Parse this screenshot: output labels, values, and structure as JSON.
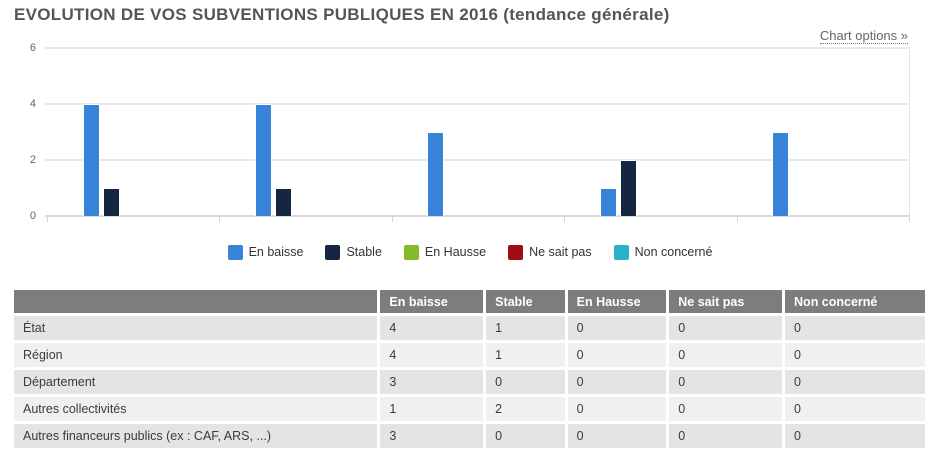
{
  "title": "EVOLUTION DE VOS SUBVENTIONS PUBLIQUES EN 2016 (tendance générale)",
  "chart_options_link": "Chart options »",
  "colors": {
    "en_baisse": "#3884d8",
    "stable": "#152740",
    "en_hausse": "#84bb2d",
    "ne_sait_pas": "#a00c13",
    "non_concerne": "#29b2c8",
    "header_gray": "#7d7d7d",
    "row_dark": "#e4e4e4",
    "row_light": "#f0f0f0",
    "grid": "#e8e8e8"
  },
  "chart_data": {
    "type": "bar",
    "title": "EVOLUTION DE VOS SUBVENTIONS PUBLIQUES EN 2016 (tendance générale)",
    "categories": [
      "État",
      "Région",
      "Département",
      "Autres collectivités",
      "Autres financeurs publics (ex : CAF, ARS, ...)"
    ],
    "series": [
      {
        "name": "En baisse",
        "color": "#3884d8",
        "values": [
          4,
          4,
          3,
          1,
          3
        ]
      },
      {
        "name": "Stable",
        "color": "#152740",
        "values": [
          1,
          1,
          0,
          2,
          0
        ]
      },
      {
        "name": "En Hausse",
        "color": "#84bb2d",
        "values": [
          0,
          0,
          0,
          0,
          0
        ]
      },
      {
        "name": "Ne sait pas",
        "color": "#a00c13",
        "values": [
          0,
          0,
          0,
          0,
          0
        ]
      },
      {
        "name": "Non concerné",
        "color": "#29b2c8",
        "values": [
          0,
          0,
          0,
          0,
          0
        ]
      }
    ],
    "xlabel": "",
    "ylabel": "",
    "ylim": [
      0,
      6
    ],
    "yticks": [
      0,
      2,
      4,
      6
    ],
    "grid": true,
    "x_tick_labels_hidden": true,
    "legend_position": "bottom"
  },
  "table": {
    "columns": [
      "",
      "En baisse",
      "Stable",
      "En Hausse",
      "Ne sait pas",
      "Non concerné"
    ],
    "rows": [
      {
        "label": "État",
        "values": [
          4,
          1,
          0,
          0,
          0
        ]
      },
      {
        "label": "Région",
        "values": [
          4,
          1,
          0,
          0,
          0
        ]
      },
      {
        "label": "Département",
        "values": [
          3,
          0,
          0,
          0,
          0
        ]
      },
      {
        "label": "Autres collectivités",
        "values": [
          1,
          2,
          0,
          0,
          0
        ]
      },
      {
        "label": "Autres financeurs publics (ex : CAF, ARS, ...)",
        "values": [
          3,
          0,
          0,
          0,
          0
        ]
      }
    ]
  }
}
